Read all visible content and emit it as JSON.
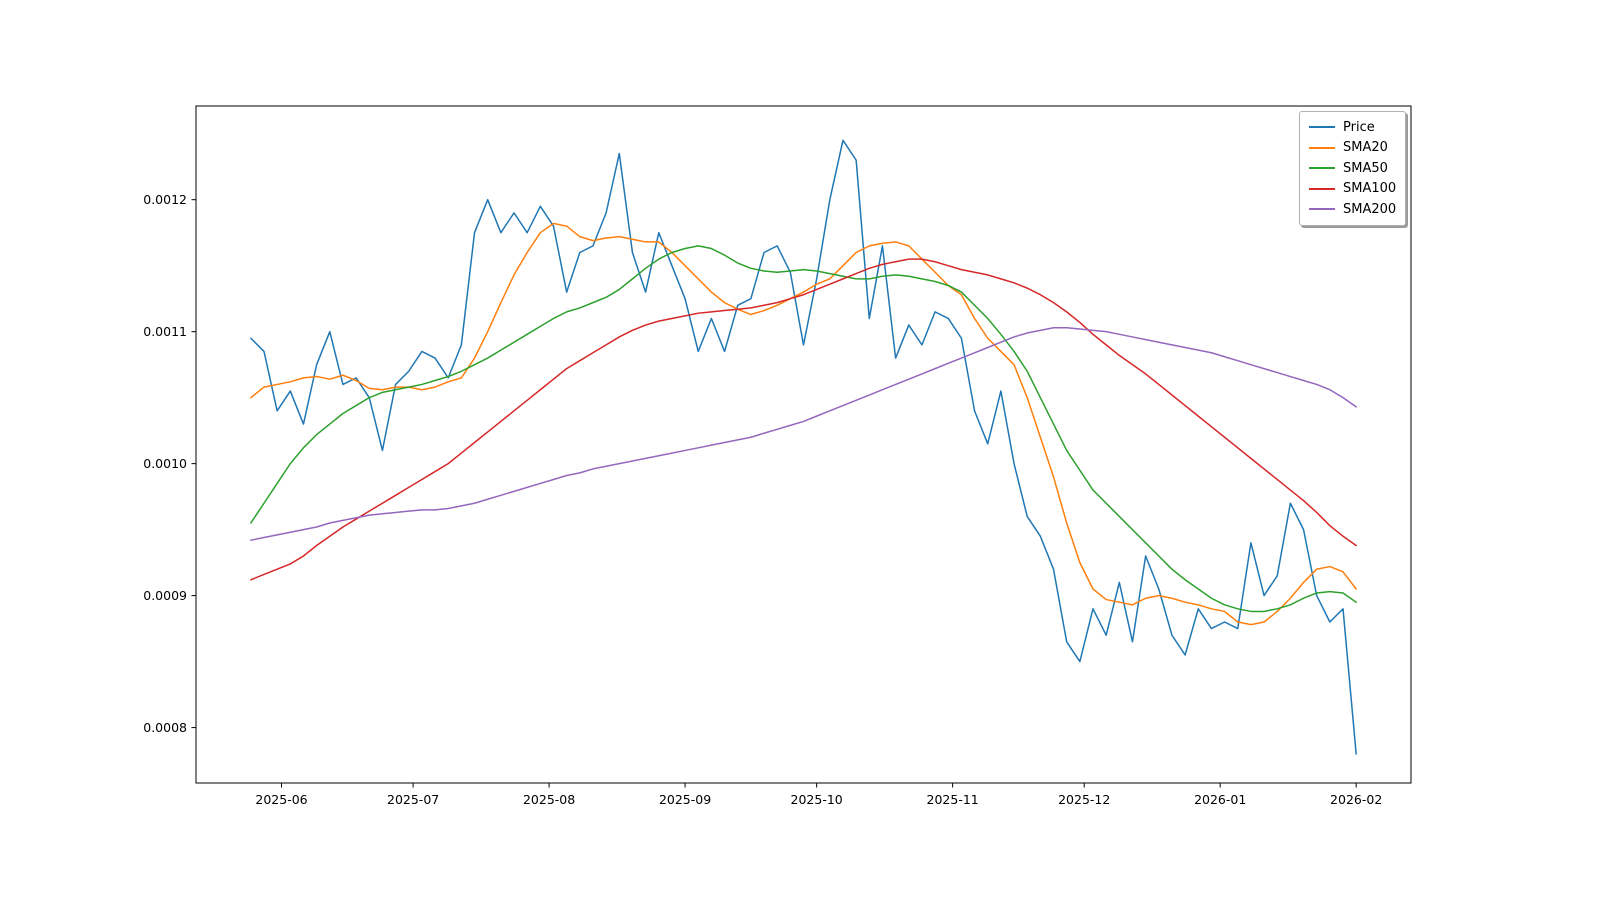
{
  "chart_data": {
    "type": "line",
    "title": "",
    "xlabel": "",
    "ylabel": "",
    "grid": false,
    "legend": {
      "entries": [
        "Price",
        "SMA20",
        "SMA50",
        "SMA100",
        "SMA200"
      ],
      "position": "upper right"
    },
    "x_axis": {
      "tick_labels": [
        "2025-06",
        "2025-07",
        "2025-08",
        "2025-09",
        "2025-10",
        "2025-11",
        "2025-12",
        "2026-01",
        "2026-02"
      ],
      "tick_days": [
        7,
        37,
        68,
        99,
        129,
        160,
        190,
        221,
        252
      ],
      "range_days": [
        -12.5,
        264.5
      ],
      "unit": "days from first data point"
    },
    "y_axis": {
      "tick_labels": [
        "0.0008",
        "0.0009",
        "0.0010",
        "0.0011",
        "0.0012"
      ],
      "ticks": [
        0.0008,
        0.0009,
        0.001,
        0.0011,
        0.0012
      ],
      "range": [
        0.000758,
        0.001271
      ]
    },
    "x_days": [
      0,
      3,
      6,
      9,
      12,
      15,
      18,
      21,
      24,
      27,
      30,
      33,
      36,
      39,
      42,
      45,
      48,
      51,
      54,
      57,
      60,
      63,
      66,
      69,
      72,
      75,
      78,
      81,
      84,
      87,
      90,
      93,
      96,
      99,
      102,
      105,
      108,
      111,
      114,
      117,
      120,
      123,
      126,
      129,
      132,
      135,
      138,
      141,
      144,
      147,
      150,
      153,
      156,
      159,
      162,
      165,
      168,
      171,
      174,
      177,
      180,
      183,
      186,
      189,
      192,
      195,
      198,
      201,
      204,
      207,
      210,
      213,
      216,
      219,
      222,
      225,
      228,
      231,
      234,
      237,
      240,
      243,
      246,
      249,
      252
    ],
    "series": [
      {
        "name": "Price",
        "color": "#1f77b4",
        "values": [
          0.001095,
          0.001085,
          0.00104,
          0.001055,
          0.00103,
          0.001075,
          0.0011,
          0.00106,
          0.001065,
          0.00105,
          0.00101,
          0.00106,
          0.00107,
          0.001085,
          0.00108,
          0.001065,
          0.00109,
          0.001175,
          0.0012,
          0.001175,
          0.00119,
          0.001175,
          0.001195,
          0.00118,
          0.00113,
          0.00116,
          0.001165,
          0.00119,
          0.001235,
          0.00116,
          0.00113,
          0.001175,
          0.00115,
          0.001125,
          0.001085,
          0.00111,
          0.001085,
          0.00112,
          0.001125,
          0.00116,
          0.001165,
          0.001145,
          0.00109,
          0.00114,
          0.0012,
          0.001245,
          0.00123,
          0.00111,
          0.001165,
          0.00108,
          0.001105,
          0.00109,
          0.001115,
          0.00111,
          0.001095,
          0.00104,
          0.001015,
          0.001055,
          0.001,
          0.00096,
          0.000945,
          0.00092,
          0.000865,
          0.00085,
          0.00089,
          0.00087,
          0.00091,
          0.000865,
          0.00093,
          0.000905,
          0.00087,
          0.000855,
          0.00089,
          0.000875,
          0.00088,
          0.000875,
          0.00094,
          0.0009,
          0.000915,
          0.00097,
          0.00095,
          0.0009,
          0.00088,
          0.00089,
          0.00078
        ]
      },
      {
        "name": "SMA20",
        "color": "#ff7f0e",
        "values": [
          0.00105,
          0.001058,
          0.00106,
          0.001062,
          0.001065,
          0.001066,
          0.001064,
          0.001067,
          0.001063,
          0.001057,
          0.001056,
          0.001058,
          0.001058,
          0.001056,
          0.001058,
          0.001062,
          0.001065,
          0.00108,
          0.0011,
          0.001122,
          0.001143,
          0.00116,
          0.001175,
          0.001182,
          0.00118,
          0.001172,
          0.001169,
          0.001171,
          0.001172,
          0.00117,
          0.001168,
          0.001168,
          0.00116,
          0.00115,
          0.00114,
          0.00113,
          0.001122,
          0.001117,
          0.001113,
          0.001116,
          0.00112,
          0.001125,
          0.00113,
          0.001136,
          0.00114,
          0.00115,
          0.00116,
          0.001165,
          0.001167,
          0.001168,
          0.001165,
          0.001155,
          0.001145,
          0.001135,
          0.001128,
          0.00111,
          0.001095,
          0.001085,
          0.001075,
          0.00105,
          0.00102,
          0.00099,
          0.000955,
          0.000925,
          0.000905,
          0.000897,
          0.000895,
          0.000893,
          0.000898,
          0.0009,
          0.000898,
          0.000895,
          0.000893,
          0.00089,
          0.000888,
          0.00088,
          0.000878,
          0.00088,
          0.000888,
          0.000898,
          0.00091,
          0.00092,
          0.000922,
          0.000918,
          0.000905
        ]
      },
      {
        "name": "SMA50",
        "color": "#2ca02c",
        "values": [
          0.000955,
          0.00097,
          0.000985,
          0.001,
          0.001012,
          0.001022,
          0.00103,
          0.001038,
          0.001044,
          0.00105,
          0.001054,
          0.001056,
          0.001058,
          0.00106,
          0.001063,
          0.001066,
          0.00107,
          0.001075,
          0.00108,
          0.001086,
          0.001092,
          0.001098,
          0.001104,
          0.00111,
          0.001115,
          0.001118,
          0.001122,
          0.001126,
          0.001132,
          0.00114,
          0.001148,
          0.001155,
          0.00116,
          0.001163,
          0.001165,
          0.001163,
          0.001158,
          0.001152,
          0.001148,
          0.001146,
          0.001145,
          0.001146,
          0.001147,
          0.001146,
          0.001144,
          0.001142,
          0.00114,
          0.00114,
          0.001142,
          0.001143,
          0.001142,
          0.00114,
          0.001138,
          0.001135,
          0.00113,
          0.00112,
          0.00111,
          0.001098,
          0.001085,
          0.00107,
          0.00105,
          0.00103,
          0.00101,
          0.000995,
          0.00098,
          0.00097,
          0.00096,
          0.00095,
          0.00094,
          0.00093,
          0.00092,
          0.000912,
          0.000905,
          0.000898,
          0.000893,
          0.00089,
          0.000888,
          0.000888,
          0.00089,
          0.000893,
          0.000898,
          0.000902,
          0.000903,
          0.000902,
          0.000895
        ]
      },
      {
        "name": "SMA100",
        "color": "#d62728",
        "values": [
          0.000912,
          0.000916,
          0.00092,
          0.000924,
          0.00093,
          0.000938,
          0.000945,
          0.000952,
          0.000958,
          0.000964,
          0.00097,
          0.000976,
          0.000982,
          0.000988,
          0.000994,
          0.001,
          0.001008,
          0.001016,
          0.001024,
          0.001032,
          0.00104,
          0.001048,
          0.001056,
          0.001064,
          0.001072,
          0.001078,
          0.001084,
          0.00109,
          0.001096,
          0.001101,
          0.001105,
          0.001108,
          0.00111,
          0.001112,
          0.001114,
          0.001115,
          0.001116,
          0.001117,
          0.001118,
          0.00112,
          0.001122,
          0.001125,
          0.001128,
          0.001132,
          0.001136,
          0.00114,
          0.001144,
          0.001148,
          0.001151,
          0.001153,
          0.001155,
          0.001155,
          0.001153,
          0.00115,
          0.001147,
          0.001145,
          0.001143,
          0.00114,
          0.001137,
          0.001133,
          0.001128,
          0.001122,
          0.001115,
          0.001107,
          0.001098,
          0.00109,
          0.001082,
          0.001075,
          0.001068,
          0.00106,
          0.001052,
          0.001044,
          0.001036,
          0.001028,
          0.00102,
          0.001012,
          0.001004,
          0.000996,
          0.000988,
          0.00098,
          0.000972,
          0.000963,
          0.000953,
          0.000945,
          0.000938
        ]
      },
      {
        "name": "SMA200",
        "color": "#9467bd",
        "values": [
          0.000942,
          0.000944,
          0.000946,
          0.000948,
          0.00095,
          0.000952,
          0.000955,
          0.000957,
          0.000959,
          0.000961,
          0.000962,
          0.000963,
          0.000964,
          0.000965,
          0.000965,
          0.000966,
          0.000968,
          0.00097,
          0.000973,
          0.000976,
          0.000979,
          0.000982,
          0.000985,
          0.000988,
          0.000991,
          0.000993,
          0.000996,
          0.000998,
          0.001,
          0.001002,
          0.001004,
          0.001006,
          0.001008,
          0.00101,
          0.001012,
          0.001014,
          0.001016,
          0.001018,
          0.00102,
          0.001023,
          0.001026,
          0.001029,
          0.001032,
          0.001036,
          0.00104,
          0.001044,
          0.001048,
          0.001052,
          0.001056,
          0.00106,
          0.001064,
          0.001068,
          0.001072,
          0.001076,
          0.00108,
          0.001084,
          0.001088,
          0.001092,
          0.001096,
          0.001099,
          0.001101,
          0.001103,
          0.001103,
          0.001102,
          0.001101,
          0.0011,
          0.001098,
          0.001096,
          0.001094,
          0.001092,
          0.00109,
          0.001088,
          0.001086,
          0.001084,
          0.001081,
          0.001078,
          0.001075,
          0.001072,
          0.001069,
          0.001066,
          0.001063,
          0.00106,
          0.001056,
          0.00105,
          0.001043
        ]
      }
    ]
  }
}
